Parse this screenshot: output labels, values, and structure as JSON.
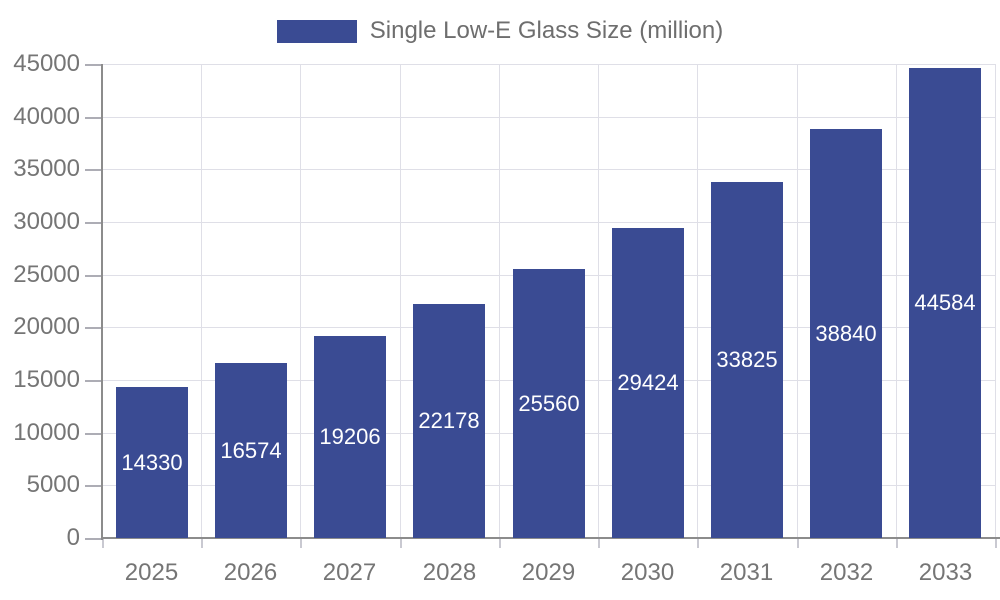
{
  "legend": {
    "label": "Single Low-E Glass Size (million)"
  },
  "chart_data": {
    "type": "bar",
    "title": "Single Low-E Glass Size (million)",
    "series_name": "Single Low-E Glass Size (million)",
    "categories": [
      "2025",
      "2026",
      "2027",
      "2028",
      "2029",
      "2030",
      "2031",
      "2032",
      "2033"
    ],
    "values": [
      14330,
      16574,
      19206,
      22178,
      25560,
      29424,
      33825,
      38840,
      44584
    ],
    "xlabel": "",
    "ylabel": "",
    "ylim": [
      0,
      45000
    ],
    "yticks": [
      0,
      5000,
      10000,
      15000,
      20000,
      25000,
      30000,
      35000,
      40000,
      45000
    ],
    "grid": true,
    "legend_position": "top",
    "value_label_position": "inside-center",
    "colors": {
      "bar": "#3A4B93",
      "value_label": "#FFFFFF",
      "axis_text": "#757575",
      "legend_text": "#6E6E6E",
      "grid_line": "#DFDFE7",
      "axis_line": "#8C8C8C",
      "y_tick": "#ADADB5",
      "x_tick": "#C9C9D1"
    }
  }
}
